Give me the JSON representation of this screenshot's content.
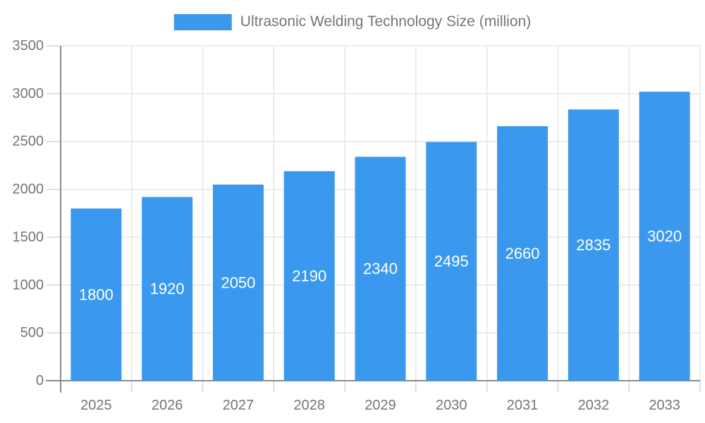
{
  "chart_data": {
    "type": "bar",
    "title": "Ultrasonic Welding Technology Size (million)",
    "legend_entries": [
      "Ultrasonic Welding Technology Size (million)"
    ],
    "legend_position": "top",
    "categories": [
      "2025",
      "2026",
      "2027",
      "2028",
      "2029",
      "2030",
      "2031",
      "2032",
      "2033"
    ],
    "values": [
      1800,
      1920,
      2050,
      2190,
      2340,
      2495,
      2660,
      2835,
      3020
    ],
    "xlabel": "",
    "ylabel": "",
    "ylim": [
      0,
      3500
    ],
    "ytick_step": 500,
    "ytick_labels": [
      "0",
      "500",
      "1000",
      "1500",
      "2000",
      "2500",
      "3000",
      "3500"
    ],
    "grid": true,
    "bar_value_labels_shown": true,
    "colors": {
      "bar": "#3a99ee",
      "bar_value_label": "#ffffff",
      "axis_text": "#757575",
      "grid_line": "#e6e6e6",
      "tick_line": "#d6d6d6",
      "axis_line": "#8c8c8c",
      "background": "#ffffff"
    }
  }
}
